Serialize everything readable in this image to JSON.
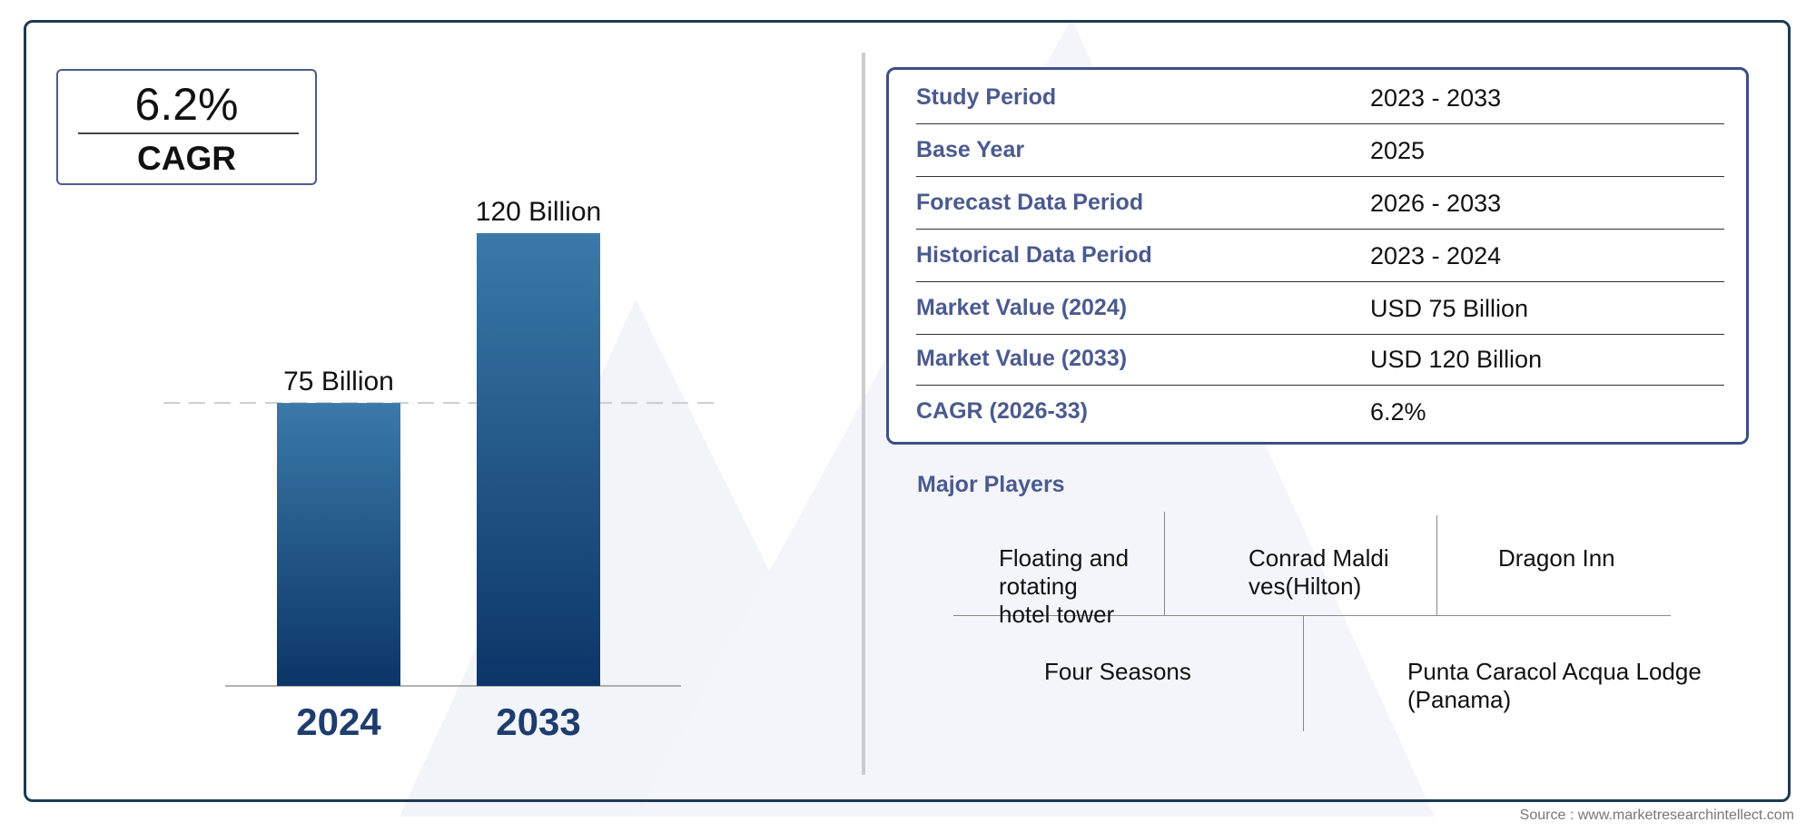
{
  "cagr_badge": {
    "value": "6.2%",
    "label": "CAGR"
  },
  "chart_data": {
    "type": "bar",
    "categories": [
      "2024",
      "2033"
    ],
    "values": [
      75,
      120
    ],
    "value_labels": [
      "75 Billion",
      "120 Billion"
    ],
    "title": "",
    "xlabel": "",
    "ylabel": "",
    "ylim": [
      0,
      120
    ],
    "colors": {
      "bar_top": "#3a7aa8",
      "bar_bottom": "#0c3568",
      "axis": "#999999",
      "reference_line": "#cccccc",
      "category_label": "#1e3d6e"
    },
    "reference_line": {
      "at_value": 75,
      "style": "dashed"
    },
    "grid": false,
    "legend": "none"
  },
  "info_table": {
    "rows": [
      {
        "label": "Study Period",
        "value": "2023 - 2033"
      },
      {
        "label": "Base Year",
        "value": "2025"
      },
      {
        "label": "Forecast Data Period",
        "value": "2026 - 2033"
      },
      {
        "label": "Historical Data Period",
        "value": "2023 - 2024"
      },
      {
        "label": "Market Value (2024)",
        "value": "USD 75 Billion"
      },
      {
        "label": "Market Value (2033)",
        "value": "USD 120 Billion"
      },
      {
        "label": "CAGR (2026-33)",
        "value": "6.2%"
      }
    ]
  },
  "major_players": {
    "title": "Major Players",
    "players": [
      "Floating and rotating hotel tower",
      "Conrad Maldives(Hilton)",
      "Dragon Inn",
      "Four Seasons",
      "Punta Caracol Acqua Lodge (Panama)"
    ]
  },
  "source": "Source : www.marketresearchintellect.com",
  "colors": {
    "frame": "#1f3a52",
    "label_blue": "#4b5a8e",
    "watermark": "#eef1f7"
  }
}
